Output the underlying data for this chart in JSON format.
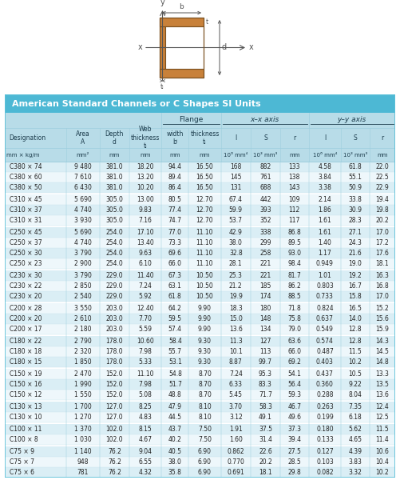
{
  "title": "American Standard Channels or C Shapes SI Units",
  "header_bg": "#4db8d4",
  "subheader_bg": "#b8dce8",
  "row_bg_light": "#daeef5",
  "row_bg_white": "#eef7fb",
  "text_dark": "#1a3a4a",
  "text_white": "#ffffff",
  "border_color": "#5bc0d8",
  "line_color": "#9ecfde",
  "rows": [
    [
      "C380 × 74",
      "9 480",
      "381.0",
      "18.20",
      "94.4",
      "16.50",
      "168",
      "882",
      "133",
      "4.58",
      "61.8",
      "22.0"
    ],
    [
      "C380 × 60",
      "7 610",
      "381.0",
      "13.20",
      "89.4",
      "16.50",
      "145",
      "761",
      "138",
      "3.84",
      "55.1",
      "22.5"
    ],
    [
      "C380 × 50",
      "6 430",
      "381.0",
      "10.20",
      "86.4",
      "16.50",
      "131",
      "688",
      "143",
      "3.38",
      "50.9",
      "22.9"
    ],
    [
      "C310 × 45",
      "5 690",
      "305.0",
      "13.00",
      "80.5",
      "12.70",
      "67.4",
      "442",
      "109",
      "2.14",
      "33.8",
      "19.4"
    ],
    [
      "C310 × 37",
      "4 740",
      "305.0",
      "9.83",
      "77.4",
      "12.70",
      "59.9",
      "393",
      "112",
      "1.86",
      "30.9",
      "19.8"
    ],
    [
      "C310 × 31",
      "3 930",
      "305.0",
      "7.16",
      "74.7",
      "12.70",
      "53.7",
      "352",
      "117",
      "1.61",
      "28.3",
      "20.2"
    ],
    [
      "C250 × 45",
      "5 690",
      "254.0",
      "17.10",
      "77.0",
      "11.10",
      "42.9",
      "338",
      "86.8",
      "1.61",
      "27.1",
      "17.0"
    ],
    [
      "C250 × 37",
      "4 740",
      "254.0",
      "13.40",
      "73.3",
      "11.10",
      "38.0",
      "299",
      "89.5",
      "1.40",
      "24.3",
      "17.2"
    ],
    [
      "C250 × 30",
      "3 790",
      "254.0",
      "9.63",
      "69.6",
      "11.10",
      "32.8",
      "258",
      "93.0",
      "1.17",
      "21.6",
      "17.6"
    ],
    [
      "C250 × 23",
      "2 900",
      "254.0",
      "6.10",
      "66.0",
      "11.10",
      "28.1",
      "221",
      "98.4",
      "0.949",
      "19.0",
      "18.1"
    ],
    [
      "C230 × 30",
      "3 790",
      "229.0",
      "11.40",
      "67.3",
      "10.50",
      "25.3",
      "221",
      "81.7",
      "1.01",
      "19.2",
      "16.3"
    ],
    [
      "C230 × 22",
      "2 850",
      "229.0",
      "7.24",
      "63.1",
      "10.50",
      "21.2",
      "185",
      "86.2",
      "0.803",
      "16.7",
      "16.8"
    ],
    [
      "C230 × 20",
      "2 540",
      "229.0",
      "5.92",
      "61.8",
      "10.50",
      "19.9",
      "174",
      "88.5",
      "0.733",
      "15.8",
      "17.0"
    ],
    [
      "C200 × 28",
      "3 550",
      "203.0",
      "12.40",
      "64.2",
      "9.90",
      "18.3",
      "180",
      "71.8",
      "0.824",
      "16.5",
      "15.2"
    ],
    [
      "C200 × 20",
      "2 610",
      "203.0",
      "7.70",
      "59.5",
      "9.90",
      "15.0",
      "148",
      "75.8",
      "0.637",
      "14.0",
      "15.6"
    ],
    [
      "C200 × 17",
      "2 180",
      "203.0",
      "5.59",
      "57.4",
      "9.90",
      "13.6",
      "134",
      "79.0",
      "0.549",
      "12.8",
      "15.9"
    ],
    [
      "C180 × 22",
      "2 790",
      "178.0",
      "10.60",
      "58.4",
      "9.30",
      "11.3",
      "127",
      "63.6",
      "0.574",
      "12.8",
      "14.3"
    ],
    [
      "C180 × 18",
      "2 320",
      "178.0",
      "7.98",
      "55.7",
      "9.30",
      "10.1",
      "113",
      "66.0",
      "0.487",
      "11.5",
      "14.5"
    ],
    [
      "C180 × 15",
      "1 850",
      "178.0",
      "5.33",
      "53.1",
      "9.30",
      "8.87",
      "99.7",
      "69.2",
      "0.403",
      "10.2",
      "14.8"
    ],
    [
      "C150 × 19",
      "2 470",
      "152.0",
      "11.10",
      "54.8",
      "8.70",
      "7.24",
      "95.3",
      "54.1",
      "0.437",
      "10.5",
      "13.3"
    ],
    [
      "C150 × 16",
      "1 990",
      "152.0",
      "7.98",
      "51.7",
      "8.70",
      "6.33",
      "83.3",
      "56.4",
      "0.360",
      "9.22",
      "13.5"
    ],
    [
      "C150 × 12",
      "1 550",
      "152.0",
      "5.08",
      "48.8",
      "8.70",
      "5.45",
      "71.7",
      "59.3",
      "0.288",
      "8.04",
      "13.6"
    ],
    [
      "C130 × 13",
      "1 700",
      "127.0",
      "8.25",
      "47.9",
      "8.10",
      "3.70",
      "58.3",
      "46.7",
      "0.263",
      "7.35",
      "12.4"
    ],
    [
      "C130 × 10",
      "1 270",
      "127.0",
      "4.83",
      "44.5",
      "8.10",
      "3.12",
      "49.1",
      "49.6",
      "0.199",
      "6.18",
      "12.5"
    ],
    [
      "C100 × 11",
      "1 370",
      "102.0",
      "8.15",
      "43.7",
      "7.50",
      "1.91",
      "37.5",
      "37.3",
      "0.180",
      "5.62",
      "11.5"
    ],
    [
      "C100 × 8",
      "1 030",
      "102.0",
      "4.67",
      "40.2",
      "7.50",
      "1.60",
      "31.4",
      "39.4",
      "0.133",
      "4.65",
      "11.4"
    ],
    [
      "C75 × 9",
      "1 140",
      "76.2",
      "9.04",
      "40.5",
      "6.90",
      "0.862",
      "22.6",
      "27.5",
      "0.127",
      "4.39",
      "10.6"
    ],
    [
      "C75 × 7",
      "948",
      "76.2",
      "6.55",
      "38.0",
      "6.90",
      "0.770",
      "20.2",
      "28.5",
      "0.103",
      "3.83",
      "10.4"
    ],
    [
      "C75 × 6",
      "781",
      "76.2",
      "4.32",
      "35.8",
      "6.90",
      "0.691",
      "18.1",
      "29.8",
      "0.082",
      "3.32",
      "10.2"
    ]
  ],
  "group_breaks": [
    3,
    6,
    10,
    13,
    16,
    19,
    22,
    24,
    26
  ],
  "col_widths_rel": [
    1.55,
    0.85,
    0.75,
    0.82,
    0.68,
    0.82,
    0.75,
    0.75,
    0.72,
    0.82,
    0.72,
    0.65
  ]
}
